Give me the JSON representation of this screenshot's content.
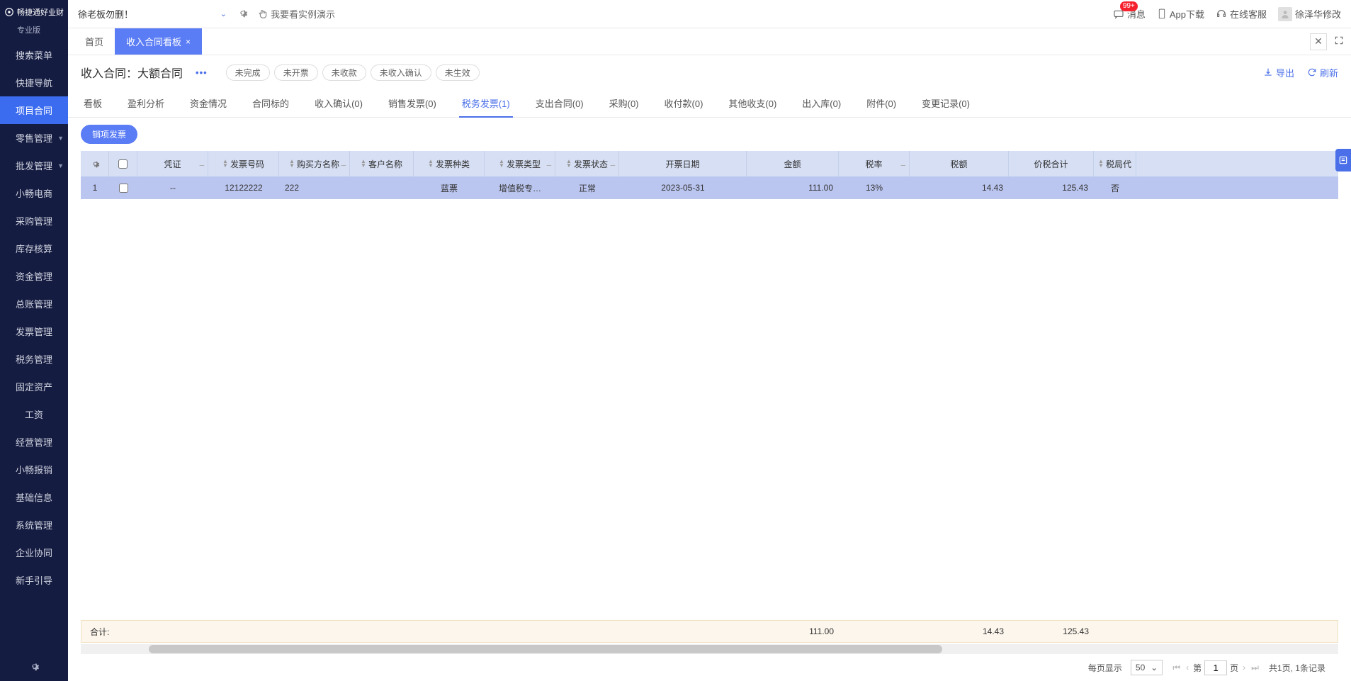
{
  "brand": {
    "name": "畅捷通好业财",
    "sub": "专业版"
  },
  "sidebar": {
    "items": [
      {
        "label": "搜索菜单",
        "arrow": false
      },
      {
        "label": "快捷导航",
        "arrow": false
      },
      {
        "label": "项目合同",
        "arrow": false,
        "active": true
      },
      {
        "label": "零售管理",
        "arrow": true
      },
      {
        "label": "批发管理",
        "arrow": true
      },
      {
        "label": "小畅电商",
        "arrow": false
      },
      {
        "label": "采购管理",
        "arrow": false
      },
      {
        "label": "库存核算",
        "arrow": false
      },
      {
        "label": "资金管理",
        "arrow": false
      },
      {
        "label": "总账管理",
        "arrow": false
      },
      {
        "label": "发票管理",
        "arrow": false
      },
      {
        "label": "税务管理",
        "arrow": false
      },
      {
        "label": "固定资产",
        "arrow": false
      },
      {
        "label": "工资",
        "arrow": false
      },
      {
        "label": "经营管理",
        "arrow": false
      },
      {
        "label": "小畅报销",
        "arrow": false
      },
      {
        "label": "基础信息",
        "arrow": false
      },
      {
        "label": "系统管理",
        "arrow": false
      },
      {
        "label": "企业协同",
        "arrow": false
      },
      {
        "label": "新手引导",
        "arrow": false
      }
    ]
  },
  "topbar": {
    "selector": "徐老板勿删！",
    "demo_link": "我要看实例演示",
    "right": {
      "badge": "99+",
      "msg": "消息",
      "download": "App下载",
      "service": "在线客服",
      "user": "徐泽华修改"
    }
  },
  "pageTabs": {
    "items": [
      {
        "label": "首页",
        "active": false,
        "closable": false
      },
      {
        "label": "收入合同看板",
        "active": true,
        "closable": true
      }
    ]
  },
  "titleRow": {
    "title": "收入合同：大额合同",
    "pills": [
      "未完成",
      "未开票",
      "未收款",
      "未收入确认",
      "未生效"
    ],
    "export": "导出",
    "refresh": "刷新"
  },
  "subTabs": {
    "items": [
      {
        "label": "看板"
      },
      {
        "label": "盈利分析"
      },
      {
        "label": "资金情况"
      },
      {
        "label": "合同标的"
      },
      {
        "label": "收入确认(0)"
      },
      {
        "label": "销售发票(0)"
      },
      {
        "label": "税务发票(1)",
        "active": true
      },
      {
        "label": "支出合同(0)"
      },
      {
        "label": "采购(0)"
      },
      {
        "label": "收付款(0)"
      },
      {
        "label": "其他收支(0)"
      },
      {
        "label": "出入库(0)"
      },
      {
        "label": "附件(0)"
      },
      {
        "label": "变更记录(0)"
      }
    ]
  },
  "filter": {
    "btn": "销项发票"
  },
  "table": {
    "columns": [
      "凭证",
      "发票号码",
      "购买方名称",
      "客户名称",
      "发票种类",
      "发票类型",
      "发票状态",
      "开票日期",
      "金额",
      "税率",
      "税额",
      "价税合计",
      "税局代"
    ],
    "row": {
      "idx": "1",
      "voucher": "--",
      "invoice_no": "12122222",
      "buyer": "222",
      "customer": "",
      "kind": "蓝票",
      "type": "增值税专…",
      "status": "正常",
      "date": "2023-05-31",
      "amount": "111.00",
      "rate": "13%",
      "tax": "14.43",
      "total": "125.43",
      "bureau": "否"
    },
    "sum": {
      "label": "合计:",
      "amount": "111.00",
      "tax": "14.43",
      "total": "125.43"
    }
  },
  "pagination": {
    "perPageLabel": "每页显示",
    "perPage": "50",
    "pageLabel1": "第",
    "pageNo": "1",
    "pageLabel2": "页",
    "summary": "共1页, 1条记录"
  }
}
